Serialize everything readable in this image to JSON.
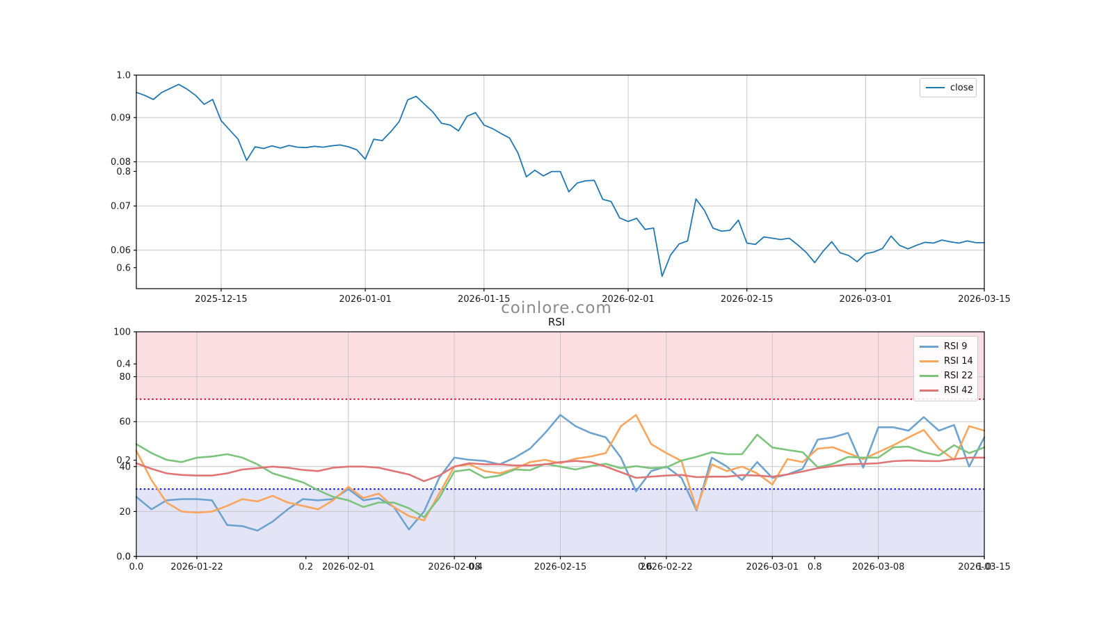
{
  "watermark": "coinlore.com",
  "chart_data": [
    {
      "type": "line",
      "title": "",
      "xlabel": "",
      "ylabel": "",
      "x_range": [
        "2025-12-05",
        "2026-03-15"
      ],
      "ylim": [
        0.0513,
        0.0996
      ],
      "grid": true,
      "legend_position": "upper right",
      "x_ticks": [
        {
          "label": "2025-12-15",
          "pos": 0.1
        },
        {
          "label": "2026-01-01",
          "pos": 0.27
        },
        {
          "label": "2026-01-15",
          "pos": 0.41
        },
        {
          "label": "2026-02-01",
          "pos": 0.58
        },
        {
          "label": "2026-02-15",
          "pos": 0.72
        },
        {
          "label": "2026-03-01",
          "pos": 0.86
        },
        {
          "label": "2026-03-15",
          "pos": 1.0
        }
      ],
      "y_ticks": [
        {
          "label": "0.09",
          "value": 0.09
        },
        {
          "label": "0.08",
          "value": 0.08
        },
        {
          "label": "0.07",
          "value": 0.07
        },
        {
          "label": "0.06",
          "value": 0.06
        }
      ],
      "series": [
        {
          "name": "close",
          "color": "#1f77b4",
          "width": 1.8,
          "values": [
            0.0957,
            0.095,
            0.0941,
            0.0957,
            0.0966,
            0.0975,
            0.0964,
            0.095,
            0.093,
            0.0941,
            0.0893,
            0.0872,
            0.0851,
            0.0803,
            0.0834,
            0.083,
            0.0836,
            0.0831,
            0.0837,
            0.0833,
            0.0832,
            0.0835,
            0.0833,
            0.0836,
            0.0838,
            0.0834,
            0.0827,
            0.0806,
            0.0851,
            0.0848,
            0.0868,
            0.0891,
            0.094,
            0.0948,
            0.093,
            0.0912,
            0.0887,
            0.0883,
            0.087,
            0.0903,
            0.0911,
            0.0883,
            0.0875,
            0.0864,
            0.0854,
            0.082,
            0.0766,
            0.0781,
            0.0768,
            0.0778,
            0.0778,
            0.0732,
            0.0752,
            0.0757,
            0.0758,
            0.0715,
            0.071,
            0.0673,
            0.0665,
            0.0672,
            0.0647,
            0.065,
            0.0541,
            0.0589,
            0.0614,
            0.0621,
            0.0716,
            0.069,
            0.065,
            0.0643,
            0.0645,
            0.0668,
            0.0616,
            0.0613,
            0.063,
            0.0627,
            0.0624,
            0.0627,
            0.0612,
            0.0595,
            0.0572,
            0.0598,
            0.0619,
            0.0594,
            0.0588,
            0.0574,
            0.0592,
            0.0596,
            0.0604,
            0.0632,
            0.0611,
            0.0603,
            0.0611,
            0.0618,
            0.0616,
            0.0623,
            0.0619,
            0.0616,
            0.0621,
            0.0617,
            0.0617
          ]
        }
      ]
    },
    {
      "type": "line",
      "title": "RSI",
      "xlabel": "",
      "ylabel": "",
      "x_range": [
        "2026-01-18",
        "2026-03-15"
      ],
      "ylim": [
        0,
        100
      ],
      "grid": true,
      "legend_position": "upper right",
      "x_ticks": [
        {
          "label": "2026-01-22",
          "pos": 0.0714
        },
        {
          "label": "2026-02-01",
          "pos": 0.25
        },
        {
          "label": "2026-02-08",
          "pos": 0.375
        },
        {
          "label": "2026-02-15",
          "pos": 0.5
        },
        {
          "label": "2026-02-22",
          "pos": 0.625
        },
        {
          "label": "2026-03-01",
          "pos": 0.75
        },
        {
          "label": "2026-03-08",
          "pos": 0.875
        },
        {
          "label": "2026-03-15",
          "pos": 1.0
        }
      ],
      "y_ticks": [
        {
          "label": "100",
          "value": 100
        },
        {
          "label": "80",
          "value": 80
        },
        {
          "label": "60",
          "value": 60
        },
        {
          "label": "40",
          "value": 40
        },
        {
          "label": "20",
          "value": 20
        },
        {
          "label": "0",
          "value": 0
        }
      ],
      "bands": [
        {
          "from": 70,
          "to": 100,
          "color": "#fbdee1",
          "name": "overbought-band"
        },
        {
          "from": 0,
          "to": 30,
          "color": "#e4e4f7",
          "name": "oversold-band"
        }
      ],
      "hlines": [
        {
          "value": 70,
          "color": "#dc143c",
          "style": "dotted",
          "name": "overbought-line"
        },
        {
          "value": 30,
          "color": "#1414cd",
          "style": "dotted",
          "name": "oversold-line"
        }
      ],
      "series": [
        {
          "name": "RSI 9",
          "color": "#6ea3cf",
          "width": 2.6,
          "values": [
            26.5,
            21,
            25,
            25.5,
            25.5,
            25,
            14,
            13.5,
            11.5,
            15.5,
            21,
            25.5,
            25,
            25.5,
            30,
            25,
            26,
            22,
            12,
            20,
            35,
            44,
            43,
            42.5,
            41,
            44,
            48,
            55,
            63,
            58,
            55,
            53,
            44,
            29,
            38,
            40,
            35,
            20.5,
            44,
            40,
            34,
            42,
            35,
            36.5,
            39,
            52,
            53,
            55,
            39.5,
            57.5,
            57.5,
            56,
            62,
            56,
            58.5,
            40,
            53
          ]
        },
        {
          "name": "RSI 14",
          "color": "#fba55c",
          "width": 2.6,
          "values": [
            47,
            34,
            24,
            20,
            19.5,
            20,
            22.5,
            25.5,
            24.5,
            27,
            24,
            22.5,
            21,
            25,
            31,
            26,
            28,
            22,
            18,
            16,
            28,
            40,
            41,
            38,
            37,
            39,
            42,
            43,
            41.5,
            43.5,
            44.5,
            46,
            58,
            63,
            50,
            46,
            42.5,
            21,
            41,
            38,
            40,
            37,
            32,
            43.3,
            42,
            48,
            48.6,
            46,
            43.3,
            46.4,
            49.5,
            53,
            56.3,
            48,
            43,
            58,
            56
          ]
        },
        {
          "name": "RSI 22",
          "color": "#7cc47c",
          "width": 2.6,
          "values": [
            50,
            46,
            43,
            42,
            44,
            44.5,
            45.5,
            44,
            41,
            37,
            35,
            33,
            29.5,
            26.5,
            25,
            22,
            24,
            24,
            21.5,
            17.5,
            26,
            37.8,
            38.7,
            35,
            36,
            38.7,
            38.4,
            41.2,
            40,
            38.7,
            40.2,
            41.2,
            39.3,
            40.2,
            39.3,
            39.6,
            42.7,
            44.3,
            46.4,
            45.5,
            45.5,
            54.2,
            48.5,
            47.4,
            46.4,
            39.7,
            41.2,
            44.3,
            44,
            44,
            48.6,
            48.9,
            46.4,
            44.9,
            49.5,
            46,
            48.5
          ]
        },
        {
          "name": "RSI 42",
          "color": "#e07575",
          "width": 2.6,
          "values": [
            41.5,
            39,
            37,
            36.3,
            36,
            36,
            37,
            38.7,
            39.3,
            40,
            39.5,
            38.5,
            38,
            39.5,
            40,
            40,
            39.5,
            38,
            36.5,
            33.5,
            36,
            40,
            41.5,
            41,
            41,
            40.5,
            40.5,
            41,
            42,
            42.5,
            42,
            40,
            37.5,
            35,
            35.5,
            36,
            36.3,
            35.3,
            35.5,
            35.5,
            36.2,
            36,
            35.5,
            36.5,
            37.8,
            39.3,
            40.2,
            41,
            41.2,
            41.5,
            42.4,
            42.7,
            42.5,
            42.4,
            43.3,
            44,
            44
          ]
        }
      ]
    }
  ],
  "overlay_axis": {
    "x_ticks": [
      {
        "label": "0.0",
        "pos": 0.0
      },
      {
        "label": "0.2",
        "pos": 0.2
      },
      {
        "label": "0.4",
        "pos": 0.4
      },
      {
        "label": "0.6",
        "pos": 0.6
      },
      {
        "label": "0.8",
        "pos": 0.8
      },
      {
        "label": "1.0",
        "pos": 1.0
      }
    ],
    "y_ticks": [
      {
        "label": "1.0",
        "pos": 1.0
      },
      {
        "label": "0.8",
        "pos": 0.8
      },
      {
        "label": "0.6",
        "pos": 0.6
      },
      {
        "label": "0.4",
        "pos": 0.4
      },
      {
        "label": "0.2",
        "pos": 0.2
      },
      {
        "label": "0.0",
        "pos": 0.0
      }
    ]
  }
}
